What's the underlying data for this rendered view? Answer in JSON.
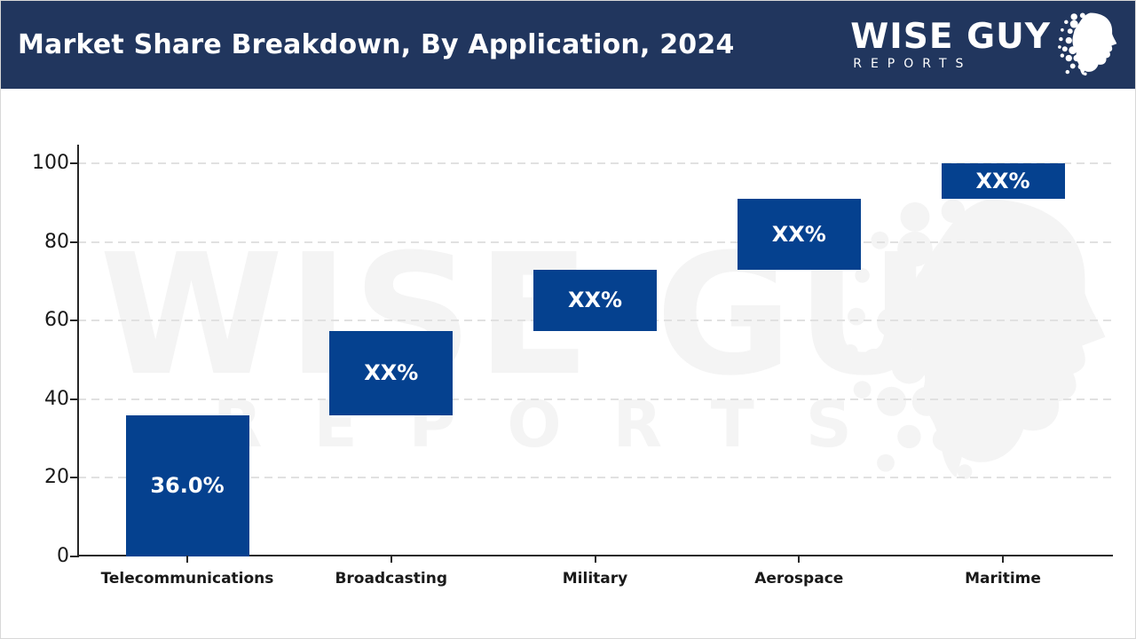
{
  "header": {
    "title": "Market Share Breakdown, By Application, 2024",
    "background": "#21365E",
    "logo": {
      "line1": "WISE GUY",
      "line2": "REPORTS"
    }
  },
  "watermark": {
    "line1": "WISE GUY",
    "line2": "REPORTS"
  },
  "chart_data": {
    "type": "bar",
    "subtype": "waterfall",
    "title": "Market Share Breakdown, By Application, 2024",
    "categories": [
      "Telecommunications",
      "Broadcasting",
      "Military",
      "Aerospace",
      "Maritime"
    ],
    "series": [
      {
        "name": "Market share",
        "segments": [
          {
            "category": "Telecommunications",
            "start": 0,
            "end": 36,
            "value": 36.0,
            "label": "36.0%"
          },
          {
            "category": "Broadcasting",
            "start": 36,
            "end": 57.5,
            "value": 21.5,
            "label": "XX%"
          },
          {
            "category": "Military",
            "start": 57.5,
            "end": 73,
            "value": 15.5,
            "label": "XX%"
          },
          {
            "category": "Aerospace",
            "start": 73,
            "end": 91,
            "value": 18.0,
            "label": "XX%"
          },
          {
            "category": "Maritime",
            "start": 91,
            "end": 100,
            "value": 9.0,
            "label": "XX%"
          }
        ]
      }
    ],
    "xlabel": "",
    "ylabel": "",
    "ylim": [
      0,
      100
    ],
    "yticks": [
      0,
      20,
      40,
      60,
      80,
      100
    ],
    "grid": {
      "axis": "y",
      "style": "dashed",
      "color": "#E1E1E1"
    },
    "legend": null,
    "colors": {
      "bar": "#05418F",
      "bar_label": "#FFFFFF",
      "axis": "#262626",
      "tick_label": "#1A1A1A",
      "category_label": "#1A1A1A"
    }
  }
}
